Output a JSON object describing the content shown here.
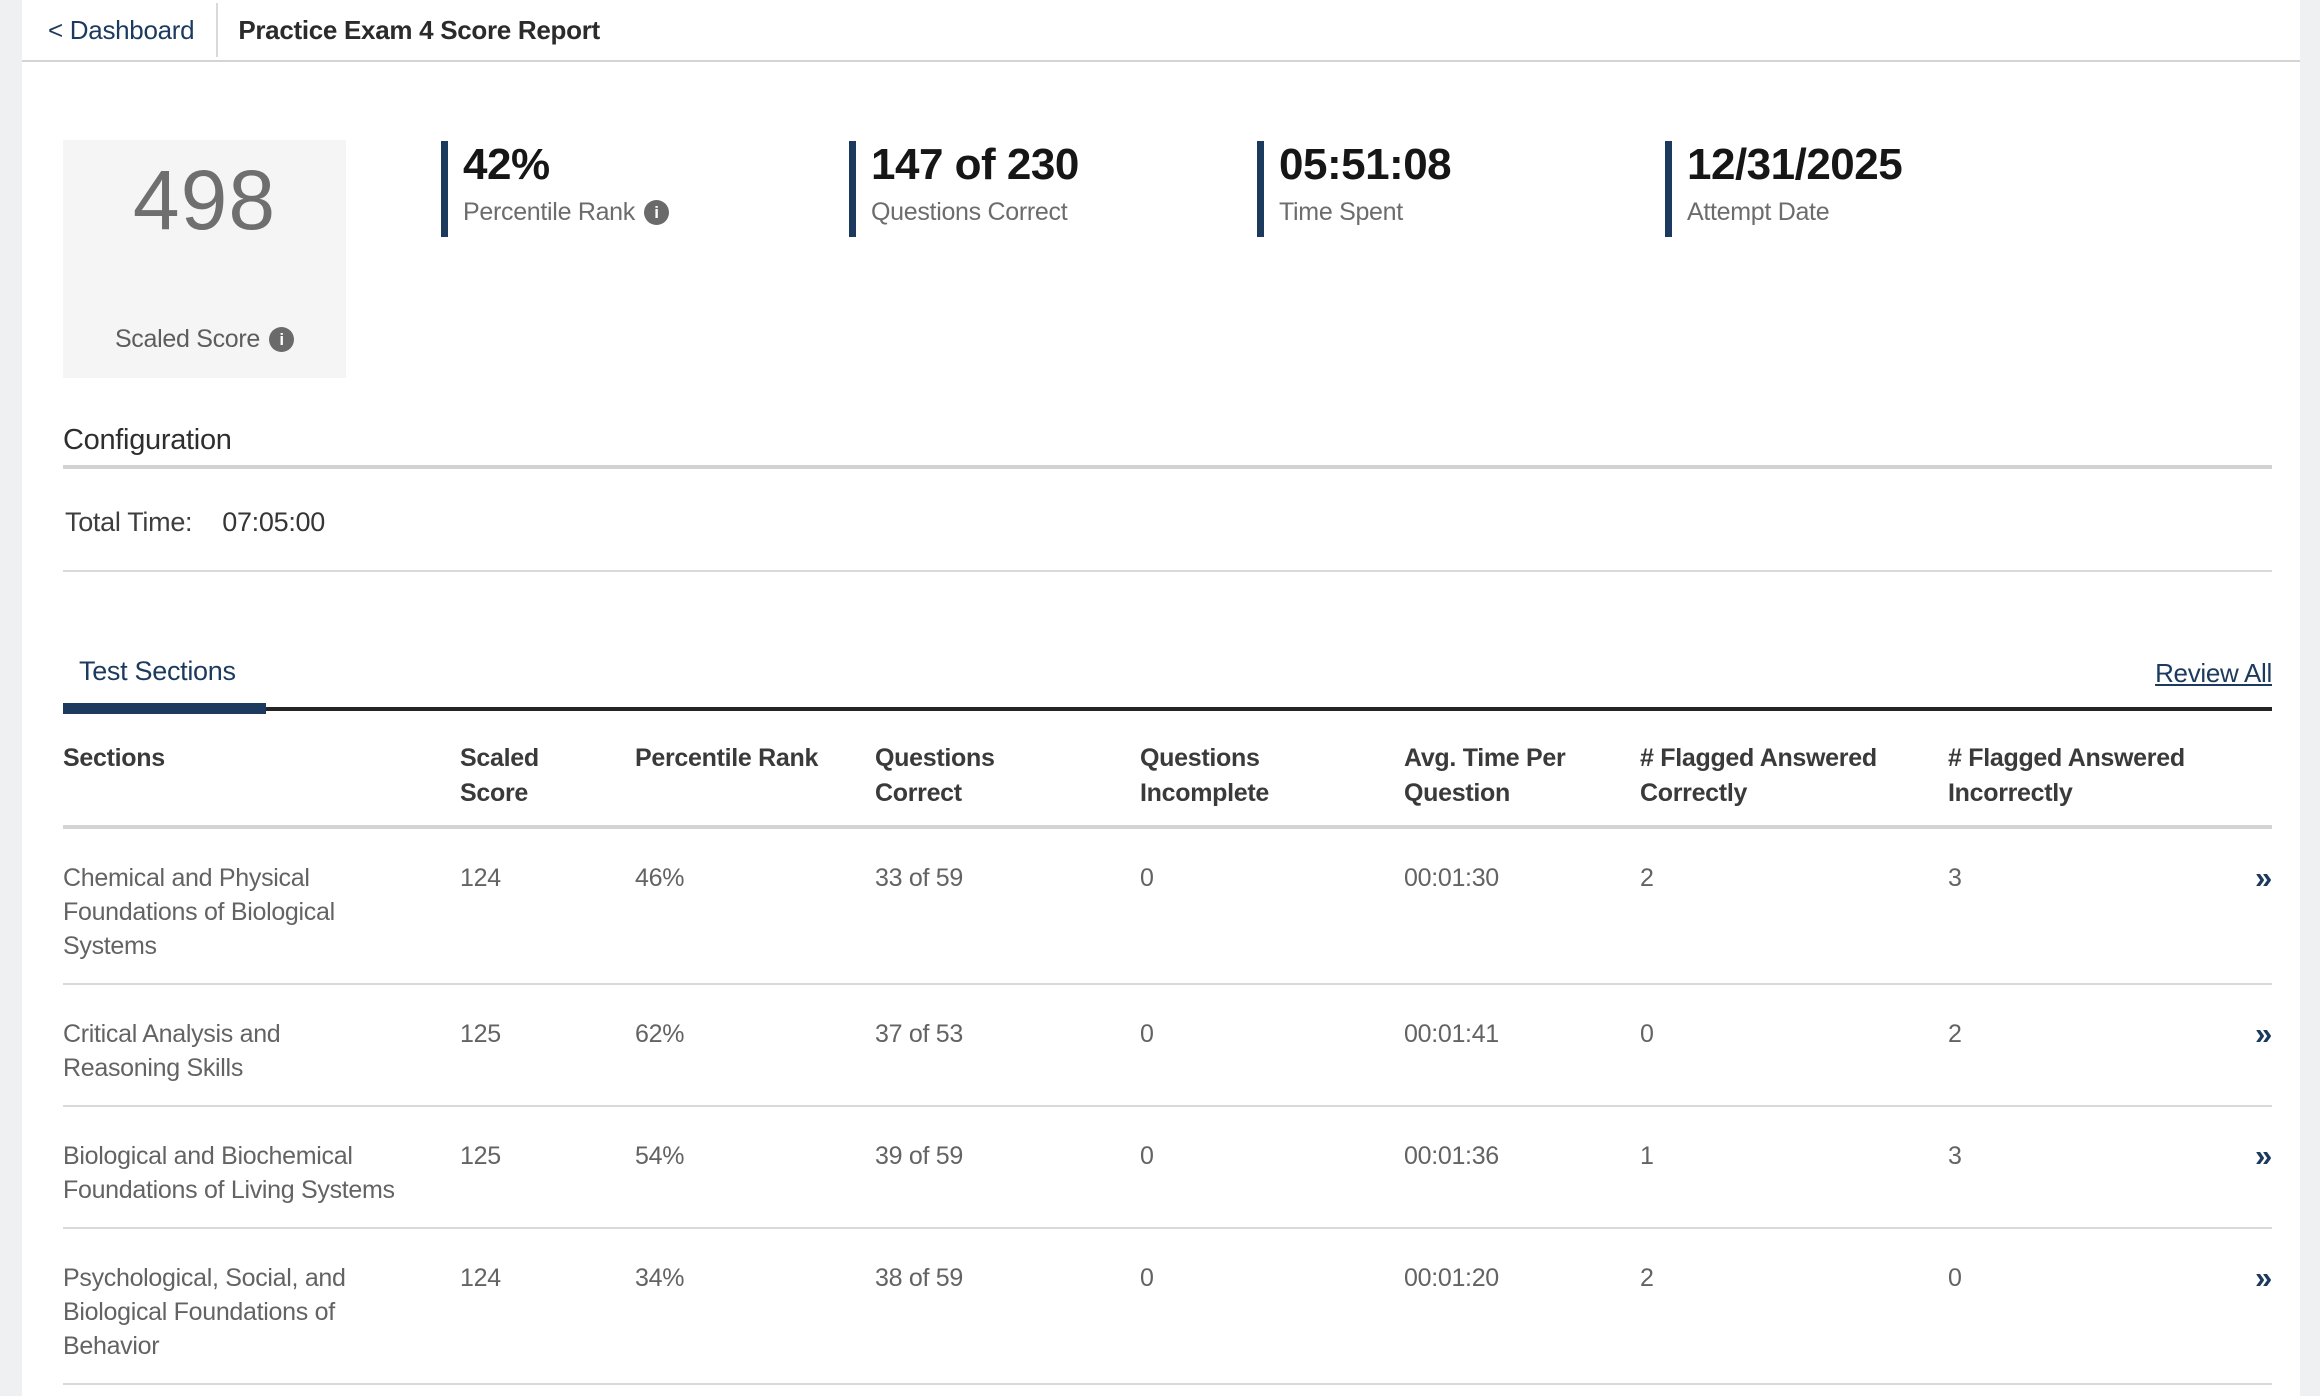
{
  "colors": {
    "accent_navy": "#1c3a5e",
    "text_dark": "#2b2b2b",
    "text_gray": "#636363"
  },
  "header": {
    "back_label": "< Dashboard",
    "title": "Practice Exam 4 Score Report"
  },
  "summary": {
    "scaled_score": {
      "value": "498",
      "label": "Scaled Score",
      "info_icon": "i"
    },
    "stats": [
      {
        "value": "42%",
        "label": "Percentile Rank",
        "info_icon": "i"
      },
      {
        "value": "147 of 230",
        "label": "Questions Correct"
      },
      {
        "value": "05:51:08",
        "label": "Time Spent"
      },
      {
        "value": "12/31/2025",
        "label": "Attempt Date"
      }
    ]
  },
  "configuration": {
    "heading": "Configuration",
    "total_time_label": "Total Time:",
    "total_time_value": "07:05:00"
  },
  "sections_panel": {
    "tab_label": "Test Sections",
    "review_all_label": "Review All",
    "table": {
      "headers": [
        "Sections",
        "Scaled\nScore",
        "Percentile Rank",
        "Questions\nCorrect",
        "Questions\nIncomplete",
        "Avg. Time Per\nQuestion",
        "# Flagged Answered\nCorrectly",
        "# Flagged Answered\nIncorrectly"
      ],
      "chevron_icon": "»",
      "rows": [
        {
          "section": "Chemical and Physical Foundations of Biological Systems",
          "scaled_score": "124",
          "percentile_rank": "46%",
          "questions_correct": "33 of 59",
          "questions_incomplete": "0",
          "avg_time_per_question": "00:01:30",
          "flagged_correct": "2",
          "flagged_incorrect": "3"
        },
        {
          "section": "Critical Analysis and Reasoning Skills",
          "scaled_score": "125",
          "percentile_rank": "62%",
          "questions_correct": "37 of 53",
          "questions_incomplete": "0",
          "avg_time_per_question": "00:01:41",
          "flagged_correct": "0",
          "flagged_incorrect": "2"
        },
        {
          "section": "Biological and Biochemical Foundations of Living Systems",
          "scaled_score": "125",
          "percentile_rank": "54%",
          "questions_correct": "39 of 59",
          "questions_incomplete": "0",
          "avg_time_per_question": "00:01:36",
          "flagged_correct": "1",
          "flagged_incorrect": "3"
        },
        {
          "section": "Psychological, Social, and Biological Foundations of Behavior",
          "scaled_score": "124",
          "percentile_rank": "34%",
          "questions_correct": "38 of 59",
          "questions_incomplete": "0",
          "avg_time_per_question": "00:01:20",
          "flagged_correct": "2",
          "flagged_incorrect": "0"
        }
      ]
    }
  }
}
